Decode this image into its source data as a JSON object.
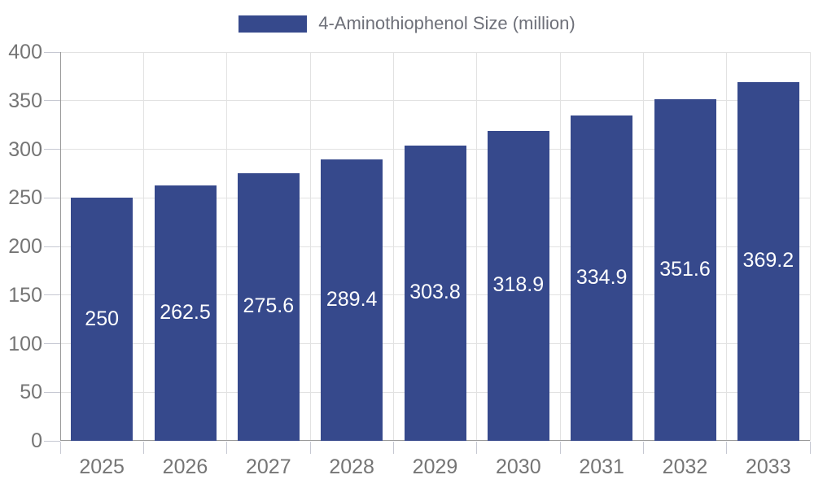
{
  "chart_data": {
    "type": "bar",
    "title": "",
    "categories": [
      "2025",
      "2026",
      "2027",
      "2028",
      "2029",
      "2030",
      "2031",
      "2032",
      "2033"
    ],
    "series": [
      {
        "name": "4-Aminothiophenol Size (million)",
        "values": [
          250,
          262.5,
          275.6,
          289.4,
          303.8,
          318.9,
          334.9,
          351.6,
          369.2
        ],
        "value_labels": [
          "250",
          "262.5",
          "275.6",
          "289.4",
          "303.8",
          "318.9",
          "334.9",
          "351.6",
          "369.2"
        ],
        "color": "#36498c"
      }
    ],
    "xlabel": "",
    "ylabel": "",
    "ylim": [
      0,
      400
    ],
    "ytick_step": 50,
    "yticks": [
      0,
      50,
      100,
      150,
      200,
      250,
      300,
      350,
      400
    ],
    "grid": true,
    "legend_position": "top",
    "value_label_color": "#ffffff",
    "axis_text_color": "#757575",
    "legend_text_color": "#6e7079",
    "grid_color": "#e2e2e2",
    "axis_line_color": "#999999",
    "tick_color": "#c6c8d2",
    "background": "#ffffff"
  }
}
